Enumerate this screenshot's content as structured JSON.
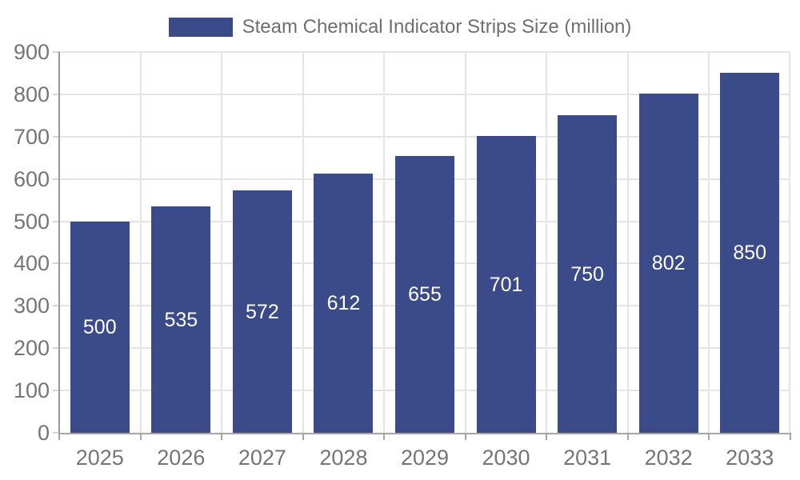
{
  "legend": {
    "label": "Steam Chemical Indicator Strips Size (million)"
  },
  "chart_data": {
    "type": "bar",
    "title": "Steam Chemical Indicator Strips Size (million)",
    "categories": [
      "2025",
      "2026",
      "2027",
      "2028",
      "2029",
      "2030",
      "2031",
      "2032",
      "2033"
    ],
    "series": [
      {
        "name": "Steam Chemical Indicator Strips Size (million)",
        "values": [
          500,
          535,
          572,
          612,
          655,
          701,
          750,
          802,
          850
        ]
      }
    ],
    "value_labels": [
      "500",
      "535",
      "572",
      "612",
      "655",
      "701",
      "750",
      "802",
      "850"
    ],
    "xlabel": "",
    "ylabel": "",
    "ylim": [
      0,
      900
    ],
    "yticks": [
      "0",
      "100",
      "200",
      "300",
      "400",
      "500",
      "600",
      "700",
      "800",
      "900"
    ],
    "grid": true,
    "legend_position": "top-center",
    "colors": {
      "bar": "#3B4A88",
      "value_label": "#ffffff",
      "axis_text": "#757575",
      "legend_text": "#6f6f6f",
      "grid_line": "#e4e4e4",
      "y_axis_line": "#999999",
      "x_axis_line": "#a6a6a6",
      "tick": "#d4d4d4",
      "background": "#ffffff"
    }
  }
}
